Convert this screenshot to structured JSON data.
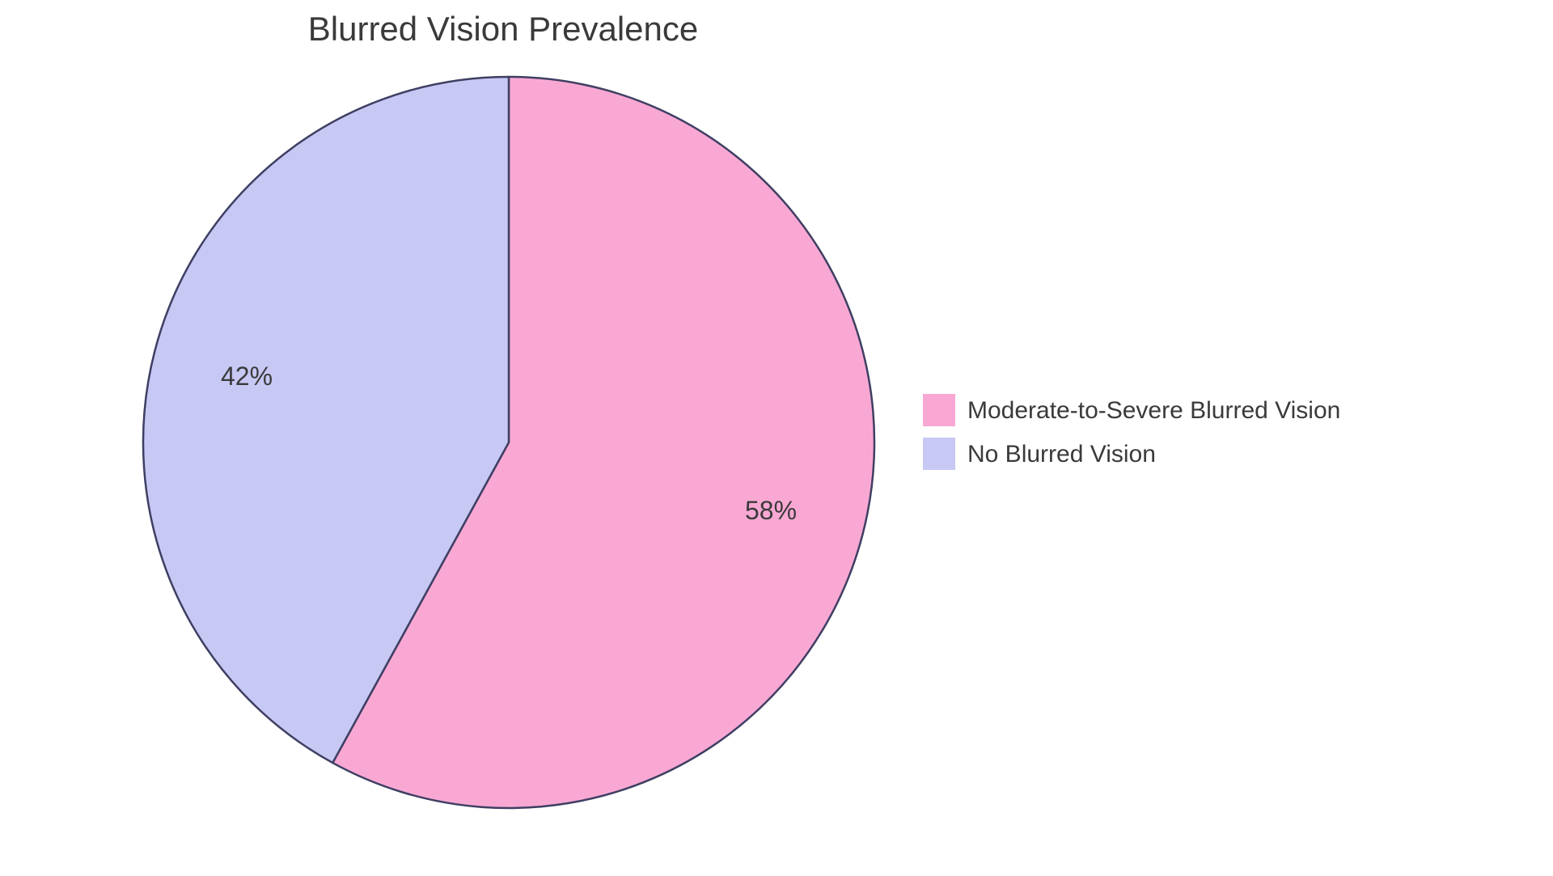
{
  "chart_data": {
    "type": "pie",
    "title": "Blurred Vision Prevalence",
    "slices": [
      {
        "label": "Moderate-to-Severe Blurred Vision",
        "value": 58,
        "pct_label": "58%",
        "color": "#F9A8D4"
      },
      {
        "label": "No Blurred Vision",
        "value": 42,
        "pct_label": "42%",
        "color": "#C7C8F4"
      }
    ],
    "total": 100,
    "stroke_color": "#3F3F63",
    "text_color": "#3A3A3A",
    "background_color": "#FFFFFF",
    "legend_position": "right",
    "start_angle_deg": 0,
    "direction": "clockwise"
  }
}
